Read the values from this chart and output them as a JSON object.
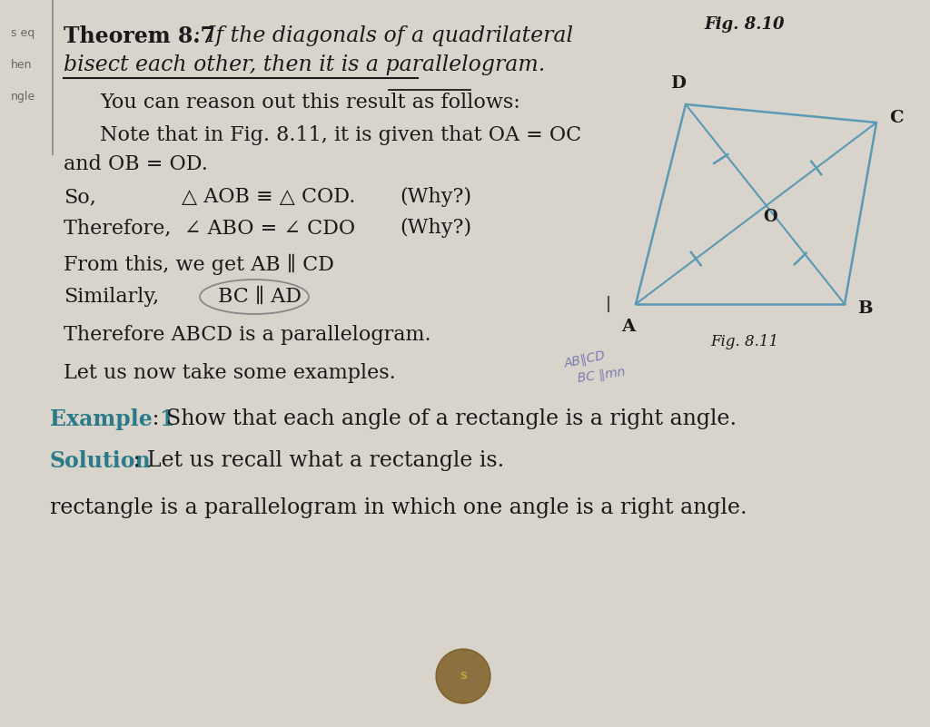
{
  "bg_color": "#d8d4cc",
  "fig_title": "Fig. 8.10",
  "fig_label": "Fig. 8.11",
  "diagram_color": "#5a9ab5",
  "text_color": "#1a1a1a",
  "teal_heading_color": "#2a7a8a",
  "title_text": "Fig. 8.10",
  "theorem_bold": "Theorem 8.7",
  "theorem_italic": " : If the diagonals of a quadrilateral",
  "theorem_line2": "bisect each other, then it is a parallelogram.",
  "line_you": "You can reason out this result as follows:",
  "line_note": "Note that in Fig. 8.11, it is given that OA = OC",
  "line_and": "and OB = OD.",
  "line_so1": "So,",
  "line_so2": "△ AOB ≡ △ COD.",
  "line_so3": "(Why?)",
  "line_there1": "Therefore,  ∠ ABO = ∠ CDO",
  "line_there2": "(Why?)",
  "line_from": "From this, we get AB ∥ CD",
  "line_sim1": "Similarly,",
  "line_sim2": "BC ∥ AD",
  "line_abcd": "Therefore ABCD is a parallelogram.",
  "line_let": "Let us now take some examples.",
  "example_bold": "Example 1",
  "example_rest": " : Show that each angle of a rectangle is a right angle.",
  "solution_bold": "Solution",
  "solution_rest": " : Let us recall what a rectangle is.",
  "last_line": "rectangle is a parallelogram in which one angle is a right angle.",
  "margin_texts": [
    [
      "s eq",
      30
    ],
    [
      "hen",
      65
    ],
    [
      "ngle",
      100
    ]
  ],
  "handwrite1": "AB∥CD",
  "handwrite2": "BC ∥mn"
}
